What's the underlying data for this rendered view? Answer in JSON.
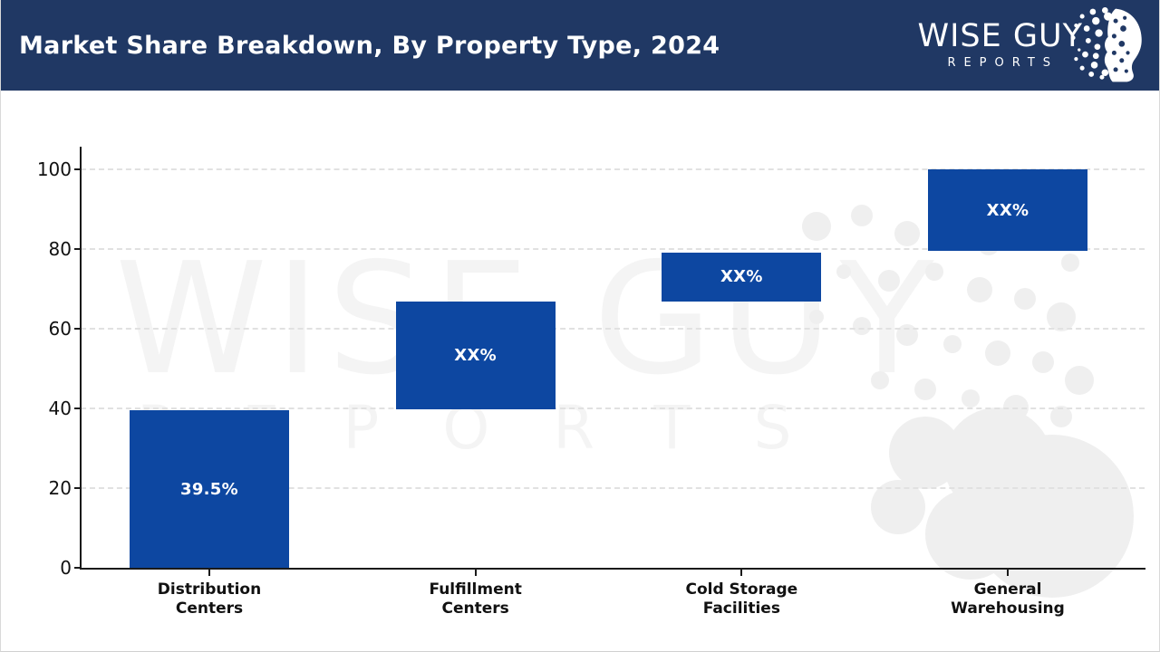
{
  "header": {
    "title": "Market Share Breakdown, By Property Type, 2024",
    "bg_color": "#203864",
    "logo": {
      "line1": "WISE GUY",
      "line2": "REPORTS"
    }
  },
  "watermark": {
    "line1": "WISE GUY",
    "line2": "REPORTS"
  },
  "chart_data": {
    "type": "bar",
    "subtype": "waterfall",
    "title": "Market Share Breakdown, By Property Type, 2024",
    "categories": [
      "Distribution Centers",
      "Fulfillment Centers",
      "Cold Storage Facilities",
      "General Warehousing"
    ],
    "category_lines": [
      [
        "Distribution",
        "Centers"
      ],
      [
        "Fulfillment",
        "Centers"
      ],
      [
        "Cold Storage",
        "Facilities"
      ],
      [
        "General",
        "Warehousing"
      ]
    ],
    "segments": [
      {
        "category": "Distribution Centers",
        "start": 0,
        "end": 39.5,
        "label": "39.5%"
      },
      {
        "category": "Fulfillment Centers",
        "start": 39.8,
        "end": 66.8,
        "label": "XX%"
      },
      {
        "category": "Cold Storage Facilities",
        "start": 66.8,
        "end": 79.2,
        "label": "XX%"
      },
      {
        "category": "General Warehousing",
        "start": 79.5,
        "end": 100,
        "label": "XX%"
      }
    ],
    "xlabel": "",
    "ylabel": "",
    "ylim": [
      0,
      100
    ],
    "yticks": [
      0,
      20,
      40,
      60,
      80,
      100
    ],
    "ytick_labels": [
      "0",
      "20",
      "40",
      "60",
      "80",
      "100"
    ],
    "grid": "horizontal-dashed",
    "legend": "none",
    "bar_color": "#0d47a1",
    "bar_label_color": "#ffffff"
  }
}
